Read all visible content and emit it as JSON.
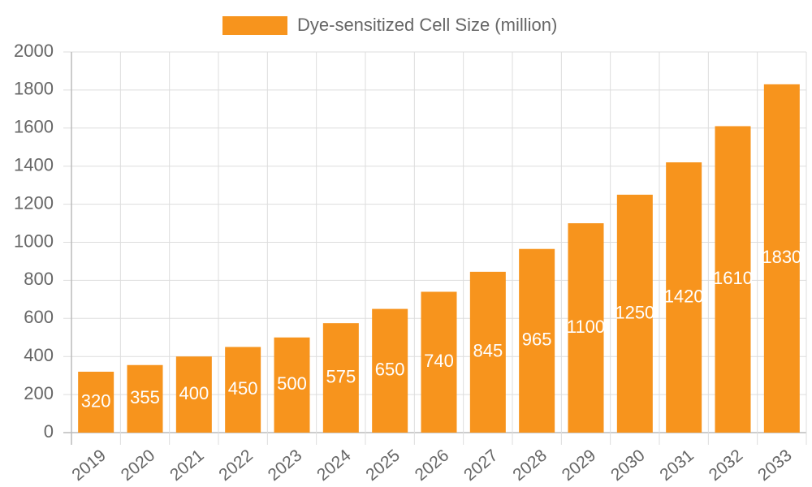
{
  "chart_data": {
    "type": "bar",
    "categories": [
      "2019",
      "2020",
      "2021",
      "2022",
      "2023",
      "2024",
      "2025",
      "2026",
      "2027",
      "2028",
      "2029",
      "2030",
      "2031",
      "2032",
      "2033"
    ],
    "series": [
      {
        "name": "Dye-sensitized Cell Size (million)",
        "color": "#f7941d",
        "values": [
          320,
          355,
          400,
          450,
          500,
          575,
          650,
          740,
          845,
          965,
          1100,
          1250,
          1420,
          1610,
          1830
        ]
      }
    ],
    "ylim": [
      0,
      2000
    ],
    "yticks": [
      0,
      200,
      400,
      600,
      800,
      1000,
      1200,
      1400,
      1600,
      1800,
      2000
    ],
    "grid": true,
    "legend": "top",
    "data_labels": true
  }
}
